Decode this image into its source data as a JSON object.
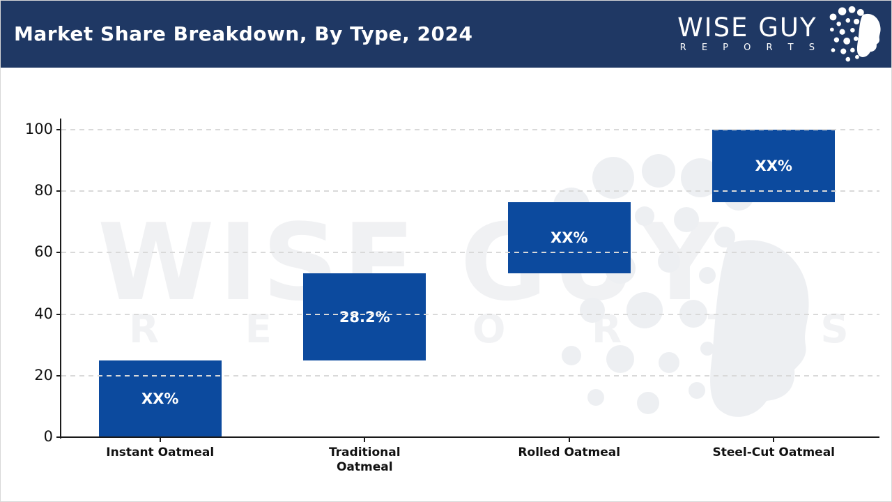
{
  "header": {
    "title": "Market Share Breakdown, By Type, 2024",
    "bg_color": "#1f3864",
    "logo": {
      "line1": "WISE GUY",
      "line2": "R E P O R T S"
    }
  },
  "watermark": {
    "line1": "WISE GUY",
    "line2": "R E P O R T S"
  },
  "chart_data": {
    "type": "bar",
    "subtype": "waterfall",
    "title": "Market Share Breakdown, By Type, 2024",
    "categories": [
      "Instant Oatmeal",
      "Traditional\nOatmeal",
      "Rolled Oatmeal",
      "Steel-Cut Oatmeal"
    ],
    "bars": [
      {
        "category": "Instant Oatmeal",
        "start": 0,
        "end": 25,
        "label": "XX%"
      },
      {
        "category": "Traditional Oatmeal",
        "start": 25,
        "end": 53.2,
        "label": "28.2%",
        "value": 28.2
      },
      {
        "category": "Rolled Oatmeal",
        "start": 53.2,
        "end": 76.4,
        "label": "XX%"
      },
      {
        "category": "Steel-Cut Oatmeal",
        "start": 76.4,
        "end": 100,
        "label": "XX%"
      }
    ],
    "ylim": [
      0,
      100
    ],
    "yticks": [
      0,
      20,
      40,
      60,
      80,
      100
    ],
    "grid": "horizontal-dashed",
    "legend": "none",
    "bar_color": "#0c4a9e",
    "grid_color": "#d9d9d9"
  }
}
